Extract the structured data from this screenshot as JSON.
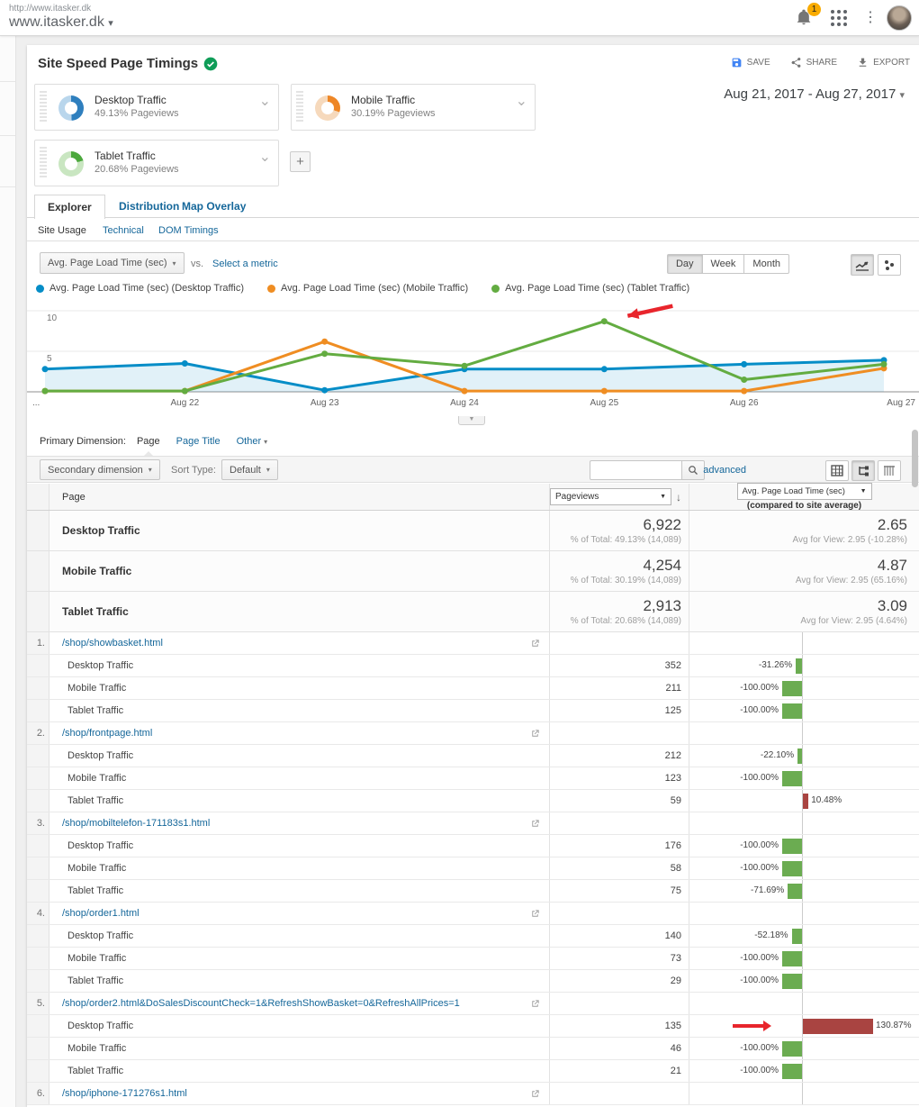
{
  "topbar": {
    "property_url": "http://www.itasker.dk",
    "property_name": "www.itasker.dk",
    "notification_count": "1"
  },
  "report": {
    "title": "Site Speed Page Timings",
    "save_label": "SAVE",
    "share_label": "SHARE",
    "export_label": "EXPORT",
    "date_range": "Aug 21, 2017 - Aug 27, 2017"
  },
  "segments": [
    {
      "name": "Desktop Traffic",
      "detail": "49.13% Pageviews",
      "pct": 49.13,
      "color": "#2f7fbe",
      "tint": "#b9d6ec"
    },
    {
      "name": "Mobile Traffic",
      "detail": "30.19% Pageviews",
      "pct": 30.19,
      "color": "#ee8727",
      "tint": "#f6d9bc"
    },
    {
      "name": "Tablet Traffic",
      "detail": "20.68% Pageviews",
      "pct": 20.68,
      "color": "#4ca83d",
      "tint": "#c9e6c1"
    }
  ],
  "tabs": {
    "explorer": "Explorer",
    "distribution": "Distribution",
    "map_overlay": "Map Overlay"
  },
  "subnav": {
    "site_usage": "Site Usage",
    "technical": "Technical",
    "dom_timings": "DOM Timings"
  },
  "metric_bar": {
    "metric": "Avg. Page Load Time (sec)",
    "vs": "vs.",
    "select_metric": "Select a metric",
    "day": "Day",
    "week": "Week",
    "month": "Month",
    "active_granularity": "Day"
  },
  "chart_data": {
    "type": "line",
    "x": [
      "...",
      "Aug 22",
      "Aug 23",
      "Aug 24",
      "Aug 25",
      "Aug 26",
      "Aug 27"
    ],
    "series": [
      {
        "name": "Avg. Page Load Time (sec) (Desktop Traffic)",
        "color": "#058dc7",
        "area": true,
        "values": [
          2.8,
          3.5,
          0.2,
          2.8,
          2.8,
          3.4,
          3.9
        ]
      },
      {
        "name": "Avg. Page Load Time (sec) (Mobile Traffic)",
        "color": "#ef8d22",
        "area": false,
        "values": [
          0.1,
          0.1,
          6.2,
          0.1,
          0.1,
          0.1,
          2.9
        ]
      },
      {
        "name": "Avg. Page Load Time (sec) (Tablet Traffic)",
        "color": "#63ac41",
        "area": false,
        "values": [
          0.1,
          0.1,
          4.7,
          3.2,
          8.7,
          1.5,
          3.4
        ]
      }
    ],
    "ylim": [
      0,
      10
    ],
    "yticks": [
      5,
      10
    ],
    "grid": true,
    "legend_position": "top",
    "annotation": {
      "type": "red-arrow",
      "target_series": 2,
      "target_x": "Aug 25",
      "color": "#e8252c"
    }
  },
  "dimension_bar": {
    "label": "Primary Dimension:",
    "active": "Page",
    "links": [
      "Page Title",
      "Other"
    ]
  },
  "toolbar": {
    "secondary_dimension": "Secondary dimension",
    "sort_type_label": "Sort Type:",
    "sort_type_value": "Default",
    "search_value": "",
    "advanced": "advanced"
  },
  "table": {
    "columns": {
      "page": "Page",
      "pageviews": "Pageviews",
      "metric": "Avg. Page Load Time (sec)",
      "metric_sub": "(compared to site average)"
    },
    "summary": [
      {
        "label": "Desktop Traffic",
        "pageviews": "6,922",
        "pv_sub": "% of Total: 49.13% (14,089)",
        "metric": "2.65",
        "metric_sub": "Avg for View: 2.95 (-10.28%)"
      },
      {
        "label": "Mobile Traffic",
        "pageviews": "4,254",
        "pv_sub": "% of Total: 30.19% (14,089)",
        "metric": "4.87",
        "metric_sub": "Avg for View: 2.95 (65.16%)"
      },
      {
        "label": "Tablet Traffic",
        "pageviews": "2,913",
        "pv_sub": "% of Total: 20.68% (14,089)",
        "metric": "3.09",
        "metric_sub": "Avg for View: 2.95 (4.64%)"
      }
    ],
    "rows": [
      {
        "index": "1.",
        "page": "/shop/showbasket.html",
        "entries": [
          {
            "label": "Desktop Traffic",
            "pageviews": "352",
            "delta": "-31.26%",
            "pct": -31.26
          },
          {
            "label": "Mobile Traffic",
            "pageviews": "211",
            "delta": "-100.00%",
            "pct": -100
          },
          {
            "label": "Tablet Traffic",
            "pageviews": "125",
            "delta": "-100.00%",
            "pct": -100
          }
        ]
      },
      {
        "index": "2.",
        "page": "/shop/frontpage.html",
        "entries": [
          {
            "label": "Desktop Traffic",
            "pageviews": "212",
            "delta": "-22.10%",
            "pct": -22.1
          },
          {
            "label": "Mobile Traffic",
            "pageviews": "123",
            "delta": "-100.00%",
            "pct": -100
          },
          {
            "label": "Tablet Traffic",
            "pageviews": "59",
            "delta": "10.48%",
            "pct": 10.48
          }
        ]
      },
      {
        "index": "3.",
        "page": "/shop/mobiltelefon-171183s1.html",
        "entries": [
          {
            "label": "Desktop Traffic",
            "pageviews": "176",
            "delta": "-100.00%",
            "pct": -100
          },
          {
            "label": "Mobile Traffic",
            "pageviews": "58",
            "delta": "-100.00%",
            "pct": -100
          },
          {
            "label": "Tablet Traffic",
            "pageviews": "75",
            "delta": "-71.69%",
            "pct": -71.69
          }
        ]
      },
      {
        "index": "4.",
        "page": "/shop/order1.html",
        "entries": [
          {
            "label": "Desktop Traffic",
            "pageviews": "140",
            "delta": "-52.18%",
            "pct": -52.18
          },
          {
            "label": "Mobile Traffic",
            "pageviews": "73",
            "delta": "-100.00%",
            "pct": -100
          },
          {
            "label": "Tablet Traffic",
            "pageviews": "29",
            "delta": "-100.00%",
            "pct": -100
          }
        ]
      },
      {
        "index": "5.",
        "page": "/shop/order2.html&DoSalesDiscountCheck=1&RefreshShowBasket=0&RefreshAllPrices=1",
        "entries": [
          {
            "label": "Desktop Traffic",
            "pageviews": "135",
            "delta": "130.87%",
            "pct": 130.87,
            "arrow": true
          },
          {
            "label": "Mobile Traffic",
            "pageviews": "46",
            "delta": "-100.00%",
            "pct": -100
          },
          {
            "label": "Tablet Traffic",
            "pageviews": "21",
            "delta": "-100.00%",
            "pct": -100
          }
        ]
      },
      {
        "index": "6.",
        "page": "/shop/iphone-171276s1.html",
        "entries": []
      }
    ]
  }
}
